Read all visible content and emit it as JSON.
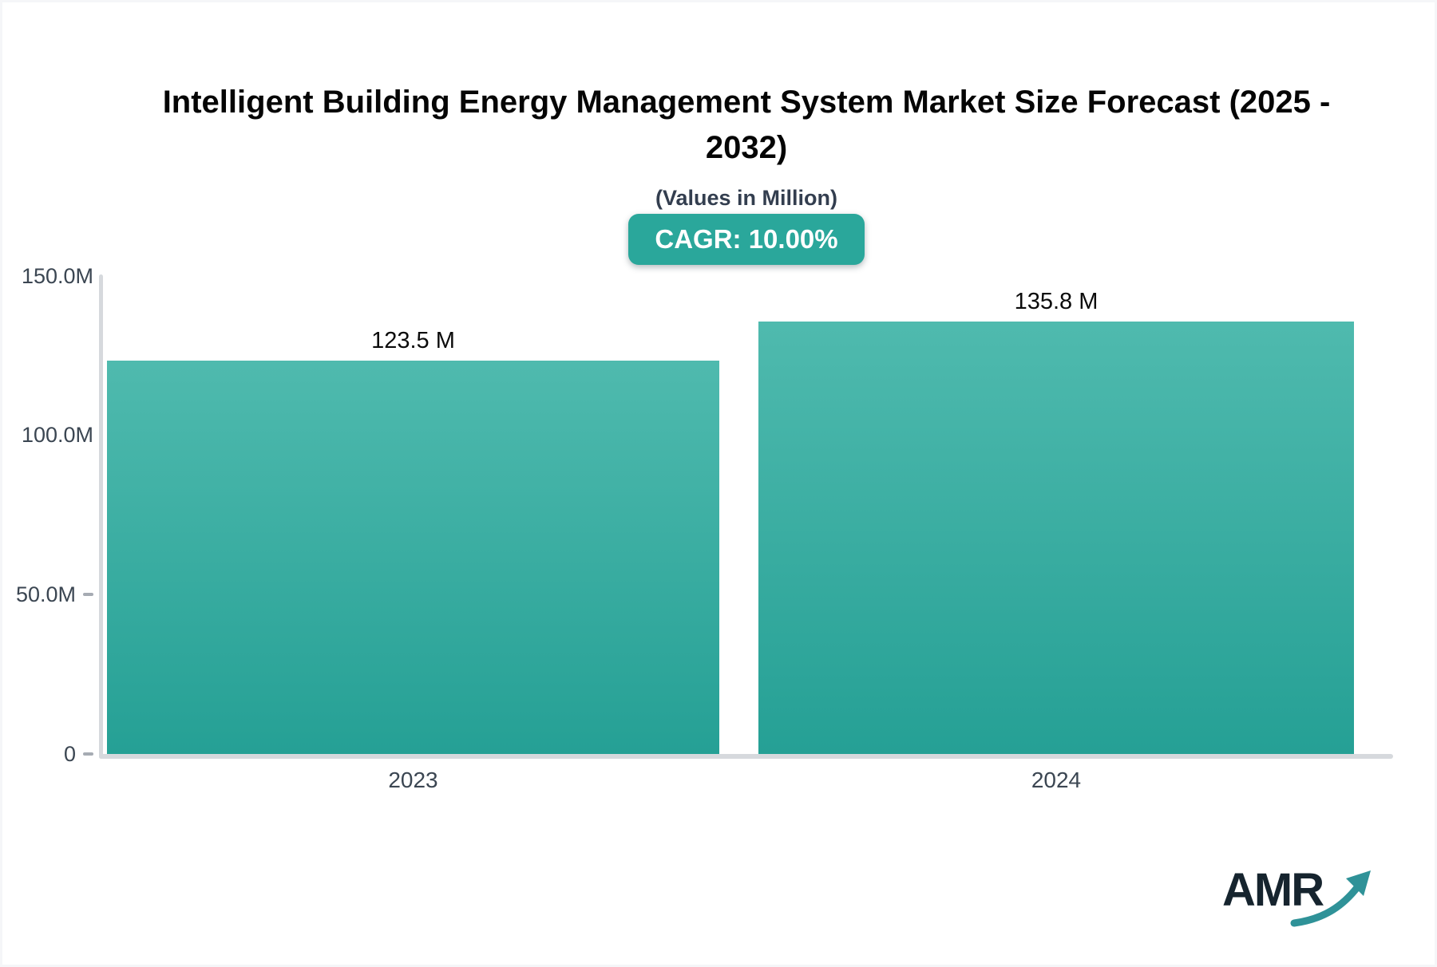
{
  "header": {
    "title": "Intelligent Building Energy Management System Market Size Forecast (2025 - 2032)",
    "title_lines": {
      "0": "Intelligent Building Energy Management System Market Size Forecast (2025 -",
      "1": "2032)"
    },
    "subtitle": "(Values in Million)",
    "badge": {
      "label": "CAGR: 10.00%",
      "bg_color": "#2aa79b",
      "text_color": "#ffffff"
    }
  },
  "logo": {
    "text": "AMR",
    "text_color": "#16242e",
    "arrow_color": "#2f9298",
    "icon": "growth-arrow-icon"
  },
  "colors": {
    "page_background": "#f5f6f8",
    "card_background": "#ffffff",
    "axis_line": "#d6d9dd",
    "tick_label": "#3b4652",
    "value_label": "#0b0b0b",
    "title": "#050505",
    "subtitle": "#333e4f"
  },
  "chart_data": {
    "type": "bar",
    "title": "Intelligent Building Energy Management System Market Size Forecast (2025 - 2032)",
    "subtitle": "(Values in Million)",
    "cagr": "10.00%",
    "categories": [
      "2023",
      "2024"
    ],
    "values": [
      123.5,
      135.8
    ],
    "value_labels": [
      "123.5 M",
      "135.8 M"
    ],
    "unit": "Million",
    "xlabel": "",
    "ylabel": "",
    "ylim": [
      0,
      150
    ],
    "yticks": [
      "150.0M",
      "100.0M",
      "50.0M",
      "0"
    ],
    "ytick_dashes": [
      false,
      false,
      true,
      true
    ],
    "bar_gradient_top": "#4fbaae",
    "bar_gradient_bottom": "#25a095",
    "grid": false,
    "legend": false
  }
}
